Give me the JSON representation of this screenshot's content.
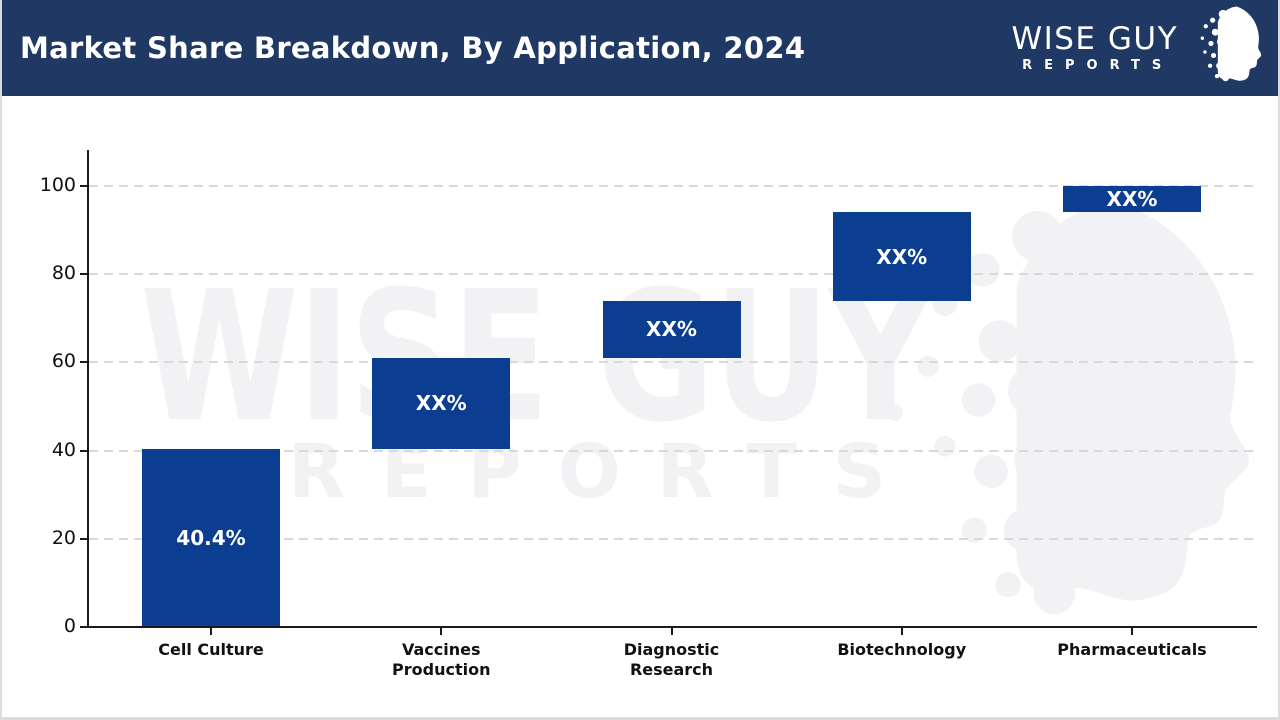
{
  "header": {
    "title": "Market Share Breakdown, By Application, 2024",
    "background_color": "#1f3864"
  },
  "logo": {
    "name": "wise-guy-reports-logo",
    "line1": "WISE GUY",
    "line2": "REPORTS"
  },
  "watermark": {
    "line1": "WISE GUY",
    "line2": "REPORTS"
  },
  "chart_data": {
    "type": "bar",
    "subtype": "waterfall",
    "title": "Market Share Breakdown, By Application, 2024",
    "categories": [
      "Cell Culture",
      "Vaccines Production",
      "Diagnostic Research",
      "Biotechnology",
      "Pharmaceuticals"
    ],
    "categories_display": [
      "Cell Culture",
      "Vaccines\nProduction",
      "Diagnostic\nResearch",
      "Biotechnology",
      "Pharmaceuticals"
    ],
    "segments": [
      {
        "category": "Cell Culture",
        "start": 0,
        "end": 40.4,
        "label": "40.4%"
      },
      {
        "category": "Vaccines Production",
        "start": 40.4,
        "end": 61,
        "label": "XX%"
      },
      {
        "category": "Diagnostic Research",
        "start": 61,
        "end": 74,
        "label": "XX%"
      },
      {
        "category": "Biotechnology",
        "start": 74,
        "end": 94,
        "label": "XX%"
      },
      {
        "category": "Pharmaceuticals",
        "start": 94,
        "end": 100,
        "label": "XX%"
      }
    ],
    "yticks": [
      0,
      20,
      40,
      60,
      80,
      100
    ],
    "ylim": [
      0,
      108
    ],
    "xlabel": "",
    "ylabel": "",
    "grid": "dashed-horizontal",
    "legend": "none",
    "bar_color": "#0b3d91",
    "bar_label_color": "#ffffff",
    "grid_color": "#d9d9d9",
    "axis_color": "#1a1a1a"
  }
}
